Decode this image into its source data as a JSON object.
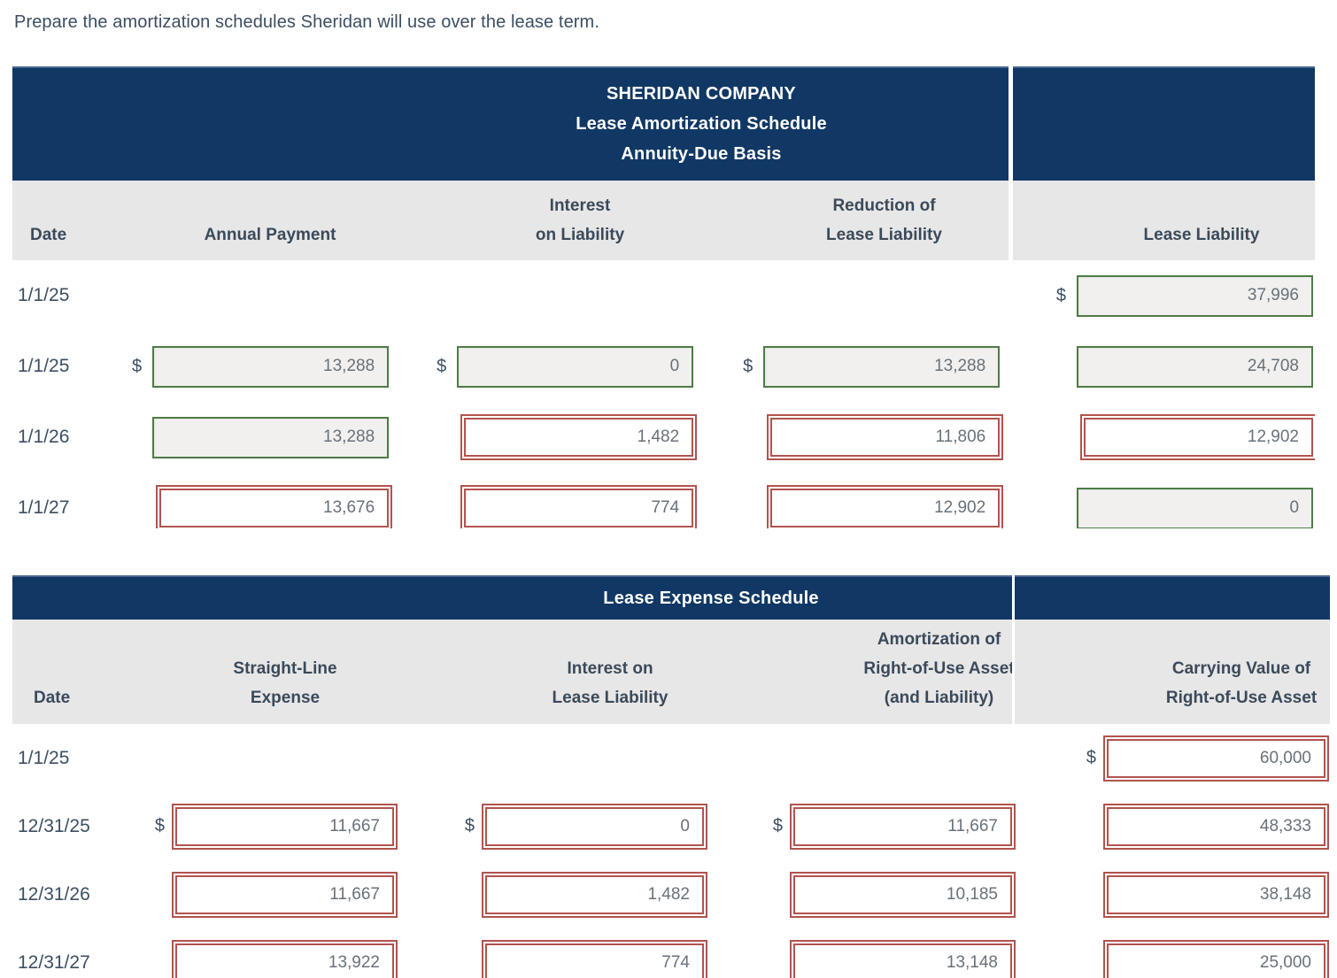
{
  "instruction": "Prepare the amortization schedules Sheridan will use over the lease term.",
  "labels": {
    "dollar": "$"
  },
  "colors": {
    "navy": "#113865",
    "header_gray": "#e8e7e7",
    "correct_green": "#4e7b46",
    "correct_fill": "#f1f0ee",
    "incorrect_red": "#b2534e",
    "value_text": "#68717a",
    "label_text": "#3c4e62"
  },
  "table1": {
    "title_lines": [
      "SHERIDAN COMPANY",
      "Lease Amortization Schedule",
      "Annuity-Due Basis"
    ],
    "columns": [
      {
        "lines": [
          "Date"
        ]
      },
      {
        "lines": [
          "Annual Payment"
        ]
      },
      {
        "lines": [
          "Interest",
          "on Liability"
        ]
      },
      {
        "lines": [
          "Reduction of",
          "Lease Liability"
        ]
      },
      {
        "lines": [
          "Lease Liability"
        ]
      }
    ],
    "rows": [
      {
        "date": "1/1/25",
        "cells": [
          null,
          null,
          null,
          {
            "value": "37,996",
            "state": "correct",
            "dollar": true
          }
        ]
      },
      {
        "date": "1/1/25",
        "cells": [
          {
            "value": "13,288",
            "state": "correct",
            "dollar": true
          },
          {
            "value": "0",
            "state": "correct",
            "dollar": true
          },
          {
            "value": "13,288",
            "state": "correct",
            "dollar": true
          },
          {
            "value": "24,708",
            "state": "correct",
            "dollar": false
          }
        ]
      },
      {
        "date": "1/1/26",
        "cells": [
          {
            "value": "13,288",
            "state": "correct",
            "dollar": false
          },
          {
            "value": "1,482",
            "state": "incorrect",
            "dollar": false
          },
          {
            "value": "11,806",
            "state": "incorrect",
            "dollar": false
          },
          {
            "value": "12,902",
            "state": "incorrect",
            "dollar": false
          }
        ]
      },
      {
        "date": "1/1/27",
        "cells": [
          {
            "value": "13,676",
            "state": "incorrect",
            "dollar": false
          },
          {
            "value": "774",
            "state": "incorrect",
            "dollar": false
          },
          {
            "value": "12,902",
            "state": "incorrect",
            "dollar": false
          },
          {
            "value": "0",
            "state": "correct",
            "dollar": false
          }
        ]
      }
    ]
  },
  "table2": {
    "title_lines": [
      "Lease Expense Schedule"
    ],
    "columns": [
      {
        "lines": [
          "Date"
        ]
      },
      {
        "lines": [
          "Straight-Line",
          "Expense"
        ]
      },
      {
        "lines": [
          "Interest on",
          "Lease Liability"
        ]
      },
      {
        "lines": [
          "Amortization of",
          "Right-of-Use Asset",
          "(and Liability)"
        ]
      },
      {
        "lines": [
          "Carrying Value of",
          "Right-of-Use Asset"
        ]
      }
    ],
    "rows": [
      {
        "date": "1/1/25",
        "cells": [
          null,
          null,
          null,
          {
            "value": "60,000",
            "state": "incorrect",
            "dollar": true
          }
        ]
      },
      {
        "date": "12/31/25",
        "cells": [
          {
            "value": "11,667",
            "state": "incorrect",
            "dollar": true
          },
          {
            "value": "0",
            "state": "incorrect",
            "dollar": true
          },
          {
            "value": "11,667",
            "state": "incorrect",
            "dollar": true
          },
          {
            "value": "48,333",
            "state": "incorrect",
            "dollar": false
          }
        ]
      },
      {
        "date": "12/31/26",
        "cells": [
          {
            "value": "11,667",
            "state": "incorrect",
            "dollar": false
          },
          {
            "value": "1,482",
            "state": "incorrect",
            "dollar": false
          },
          {
            "value": "10,185",
            "state": "incorrect",
            "dollar": false
          },
          {
            "value": "38,148",
            "state": "incorrect",
            "dollar": false
          }
        ]
      },
      {
        "date": "12/31/27",
        "cells": [
          {
            "value": "13,922",
            "state": "incorrect",
            "dollar": false
          },
          {
            "value": "774",
            "state": "incorrect",
            "dollar": false
          },
          {
            "value": "13,148",
            "state": "incorrect",
            "dollar": false
          },
          {
            "value": "25,000",
            "state": "incorrect",
            "dollar": false
          }
        ]
      }
    ]
  }
}
